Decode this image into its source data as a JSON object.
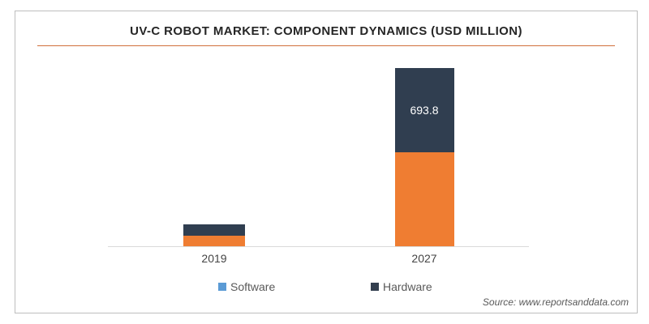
{
  "chart_data": {
    "type": "bar",
    "stacked": true,
    "title": "UV-C ROBOT MARKET: COMPONENT DYNAMICS (USD MILLION)",
    "categories": [
      "2019",
      "2027"
    ],
    "series": [
      {
        "name": "Software",
        "legend_color": "#5B9BD5",
        "bar_color": "#EF7D32",
        "values": [
          87,
          774
        ],
        "labels": [
          "",
          ""
        ]
      },
      {
        "name": "Hardware",
        "legend_color": "#333F4F",
        "bar_color": "#303E50",
        "values": [
          93,
          693.8
        ],
        "labels": [
          "",
          "693.8"
        ]
      }
    ],
    "value_axis_visible": false,
    "gridlines": false,
    "legend_position": "bottom",
    "data_label_color": "#ffffff",
    "ylim": [
      0,
      1560
    ]
  },
  "source": {
    "text": "Source: www.reportsanddata.com"
  }
}
